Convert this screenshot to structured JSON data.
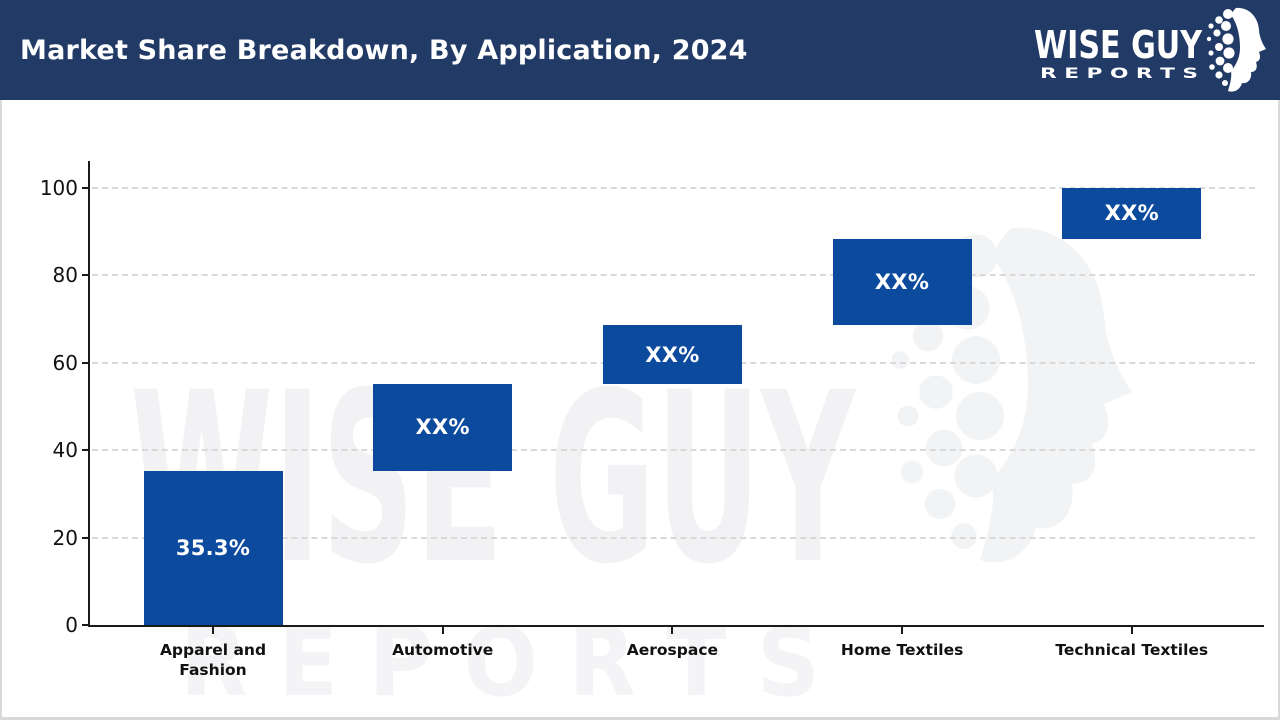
{
  "header": {
    "title": "Market Share Breakdown, By Application, 2024",
    "logo": {
      "line1": "WISE GUY",
      "line2": "R E P O R T S"
    }
  },
  "watermark": {
    "line1": "WISE GUY",
    "line2": "R E P O R T S"
  },
  "colors": {
    "header_bg": "#213a66",
    "bar": "#0c4a9e",
    "grid": "#d9d9d9",
    "axis": "#1a1a1a",
    "bar_label": "#ffffff",
    "watermark": "#f2f2f4"
  },
  "chart_data": {
    "type": "bar",
    "variant": "waterfall",
    "title": "Market Share Breakdown, By Application, 2024",
    "categories": [
      "Apparel and Fashion",
      "Automotive",
      "Aerospace",
      "Home Textiles",
      "Technical Textiles"
    ],
    "segments": [
      {
        "category": "Apparel and Fashion",
        "label": "35.3%",
        "start": 0,
        "end": 35.3
      },
      {
        "category": "Automotive",
        "label": "XX%",
        "start": 35.3,
        "end": 55.0
      },
      {
        "category": "Aerospace",
        "label": "XX%",
        "start": 55.0,
        "end": 68.5
      },
      {
        "category": "Home Textiles",
        "label": "XX%",
        "start": 68.5,
        "end": 88.3
      },
      {
        "category": "Technical Textiles",
        "label": "XX%",
        "start": 88.3,
        "end": 100
      }
    ],
    "ylabel": "",
    "xlabel": "",
    "yticks": [
      0,
      20,
      40,
      60,
      80,
      100
    ],
    "ylim": [
      0,
      106
    ],
    "grid": "horizontal-dashed",
    "legend": "none"
  }
}
